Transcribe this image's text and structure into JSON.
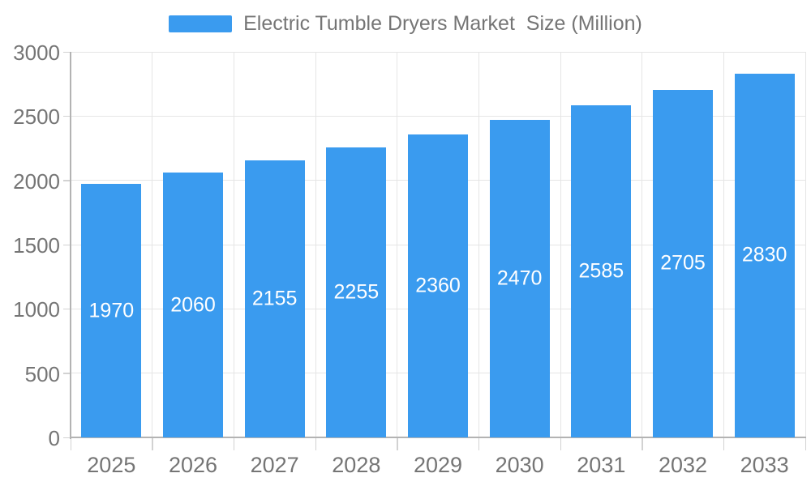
{
  "chart_data": {
    "type": "bar",
    "title": "Electric Tumble Dryers Market  Size (Million)",
    "legend": {
      "label": "Electric Tumble Dryers Market  Size (Million)",
      "position": "top-center"
    },
    "categories": [
      "2025",
      "2026",
      "2027",
      "2028",
      "2029",
      "2030",
      "2031",
      "2032",
      "2033"
    ],
    "values": [
      1970,
      2060,
      2155,
      2255,
      2360,
      2470,
      2585,
      2705,
      2830
    ],
    "xlabel": "",
    "ylabel": "",
    "ylim": [
      0,
      3000
    ],
    "yticks": [
      0,
      500,
      1000,
      1500,
      2000,
      2500,
      3000
    ],
    "grid": "on",
    "value_labels": "inside-bar-centered",
    "colors": {
      "bar": "#3A9BEF",
      "value_label": "#FFFFFF",
      "axis_text": "#757575",
      "legend_text": "#757575",
      "gridline": "#E5E5E5",
      "axis_line": "#B3B3B3",
      "tick_mark": "#D2D2D2",
      "background": "#FFFFFF"
    }
  }
}
